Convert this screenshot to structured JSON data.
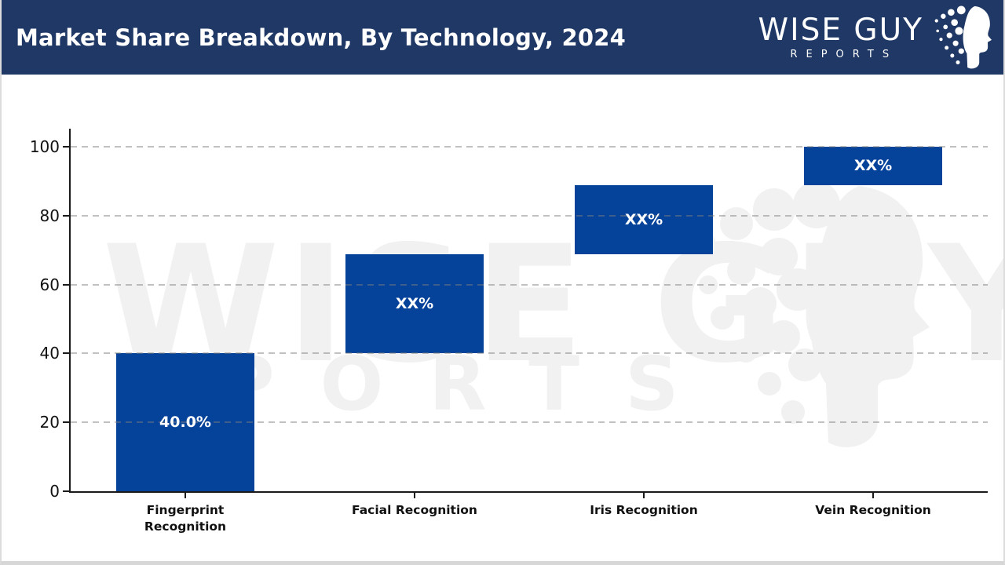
{
  "header": {
    "title": "Market Share Breakdown, By Technology, 2024",
    "logo": {
      "line1": "WISE GUY",
      "line2": "REPORTS"
    }
  },
  "watermark": {
    "line1": "WISE GUY",
    "line2": "PORTS"
  },
  "theme": {
    "header_bg": "#1f3866",
    "bar_color": "#05429a",
    "watermark_color": "#f1f1f1"
  },
  "chart_data": {
    "type": "bar",
    "subtype": "waterfall",
    "title": "Market Share Breakdown, By Technology, 2024",
    "categories": [
      "Fingerprint\nRecognition",
      "Facial Recognition",
      "Iris Recognition",
      "Vein Recognition"
    ],
    "segments": [
      {
        "category": "Fingerprint Recognition",
        "start": 0,
        "end": 40,
        "label": "40.0%"
      },
      {
        "category": "Facial Recognition",
        "start": 40,
        "end": 68.8,
        "label": "XX%"
      },
      {
        "category": "Iris Recognition",
        "start": 68.8,
        "end": 88.9,
        "label": "XX%"
      },
      {
        "category": "Vein Recognition",
        "start": 88.9,
        "end": 100,
        "label": "XX%"
      }
    ],
    "yticks": [
      0,
      20,
      40,
      60,
      80,
      100
    ],
    "ylim": [
      0,
      105.5
    ],
    "xlabel": "",
    "ylabel": "",
    "grid": true,
    "grid_style": "dashed",
    "legend": "none"
  }
}
